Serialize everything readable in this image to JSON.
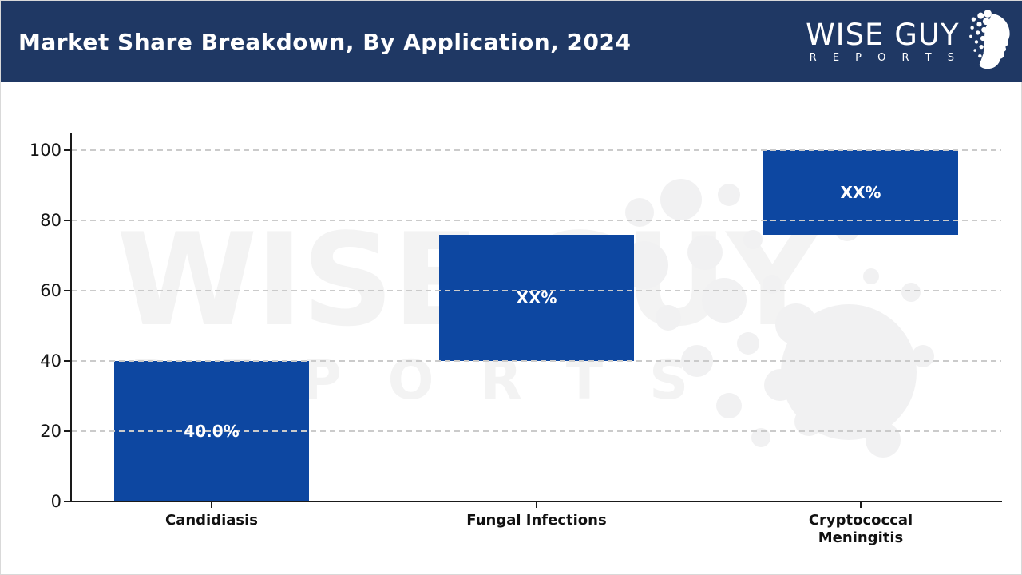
{
  "header": {
    "title": "Market Share Breakdown, By Application, 2024",
    "logo": {
      "wordmark": "WISE GUY",
      "subtext": "R E P O R T S"
    }
  },
  "watermark": {
    "line1": "WISE GUY",
    "line2": "REPORTS"
  },
  "chart_data": {
    "type": "bar",
    "subtype": "floating-segment-waterfall",
    "title": "Market Share Breakdown, By Application, 2024",
    "categories": [
      "Candidiasis",
      "Fungal Infections",
      "Cryptococcal Meningitis"
    ],
    "bars": [
      {
        "category": "Candidiasis",
        "start": 0,
        "end": 40,
        "label": "40.0%"
      },
      {
        "category": "Fungal Infections",
        "start": 40,
        "end": 76,
        "label": "XX%"
      },
      {
        "category": "Cryptococcal Meningitis",
        "start": 76,
        "end": 100,
        "label": "XX%"
      }
    ],
    "y_ticks": [
      0,
      20,
      40,
      60,
      80,
      100
    ],
    "ylim": [
      0,
      105
    ],
    "xlabel": "",
    "ylabel": "",
    "grid": "horizontal-dashed",
    "legend": "none",
    "colors": {
      "bar": "#0d47a1",
      "bar_label": "#ffffff",
      "grid": "#cbcbcb",
      "axis": "#1a1a1a",
      "header_bg": "#1f3864",
      "watermark": "#f3f3f3"
    }
  }
}
